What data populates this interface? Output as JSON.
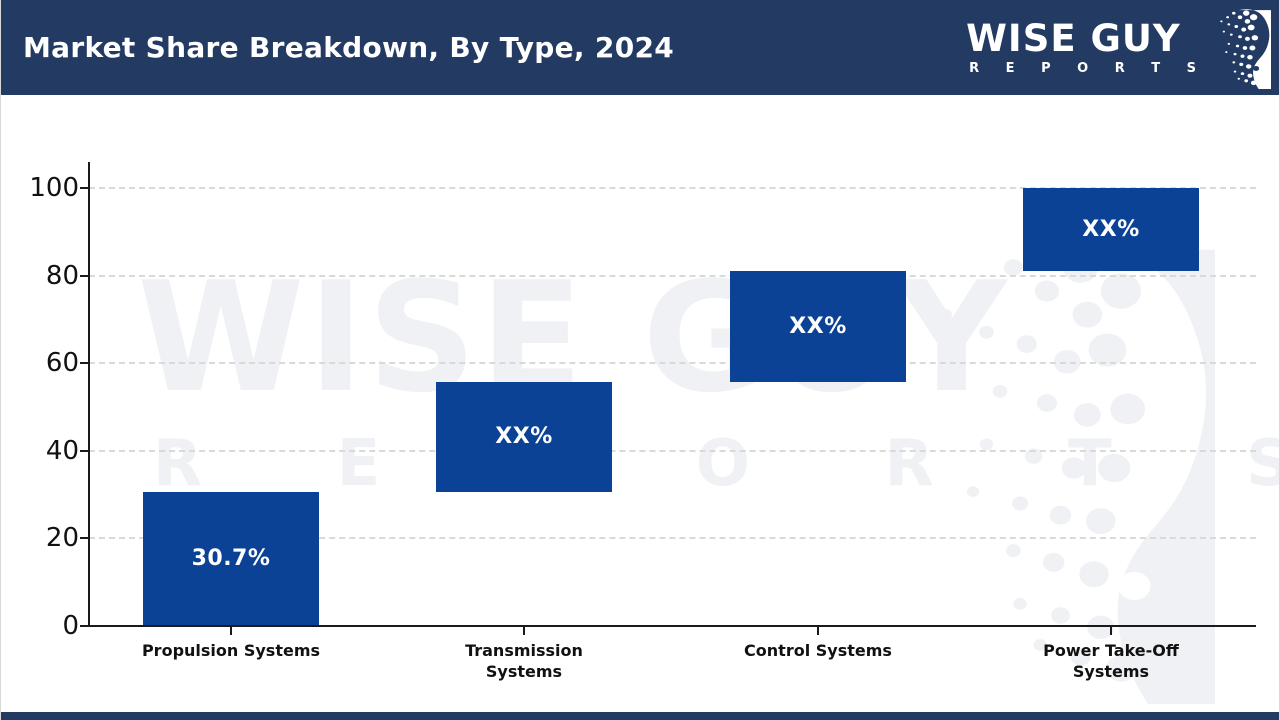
{
  "header": {
    "title": "Market Share Breakdown, By Type, 2024"
  },
  "brand": {
    "name_top": "WISE GUY",
    "name_bottom": "R E P O R T S"
  },
  "watermark": {
    "text_top": "WISE GUY",
    "text_bottom": "R E P O R T S"
  },
  "colors": {
    "header_bg": "#233A63",
    "bar": "#0B4295",
    "grid": "#D9D9D9",
    "axis": "#1A1A1A",
    "watermark": "#F0F1F4",
    "label_on_bar": "#FFFFFF"
  },
  "chart_data": {
    "type": "bar",
    "subtype": "waterfall",
    "title": "Market Share Breakdown, By Type, 2024",
    "categories": [
      "Propulsion Systems",
      "Transmission\nSystems",
      "Control Systems",
      "Power Take-Off\nSystems"
    ],
    "bars": [
      {
        "category": "Propulsion Systems",
        "start": 0,
        "end": 30.7,
        "label": "30.7%"
      },
      {
        "category": "Transmission Systems",
        "start": 30.7,
        "end": 55.7,
        "label": "XX%"
      },
      {
        "category": "Control Systems",
        "start": 55.7,
        "end": 81.1,
        "label": "XX%"
      },
      {
        "category": "Power Take-Off Systems",
        "start": 81.1,
        "end": 100,
        "label": "XX%"
      }
    ],
    "yticks": [
      0,
      20,
      40,
      60,
      80,
      100
    ],
    "ylim": [
      0,
      105
    ],
    "xlabel": "",
    "ylabel": "",
    "grid": "horizontal-dashed",
    "legend": "none"
  }
}
